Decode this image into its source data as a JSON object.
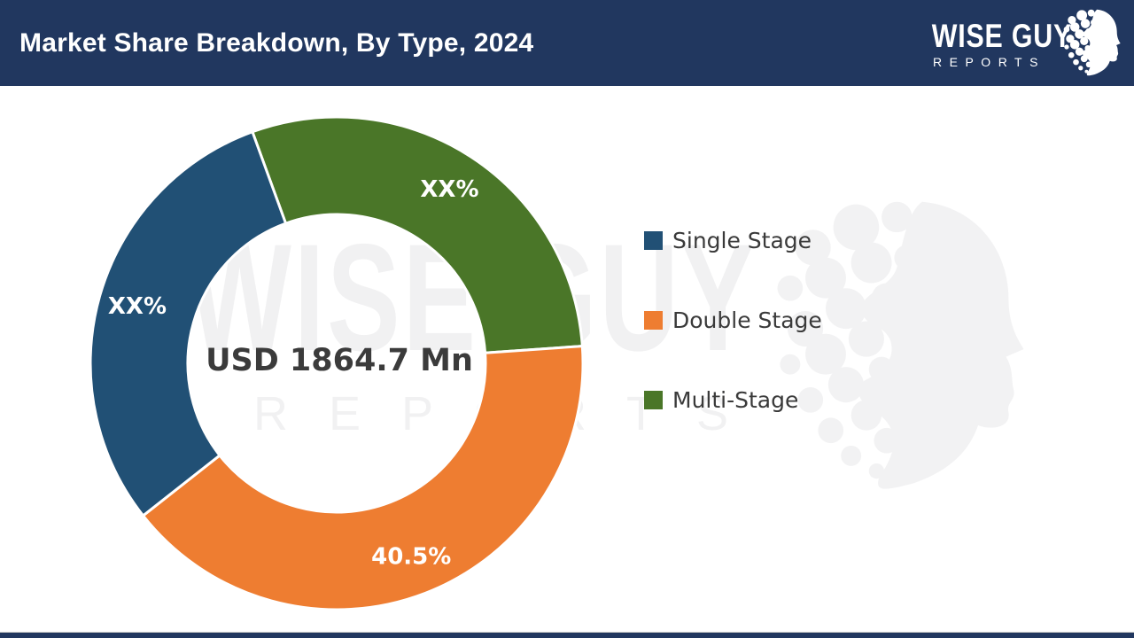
{
  "header": {
    "title": "Market Share Breakdown, By Type, 2024"
  },
  "logo": {
    "title_top": "WISE GUY",
    "title_bottom": "REPORTS"
  },
  "watermark": {
    "line1": "WISE GUY",
    "line2": "REPORTS"
  },
  "center_label": "USD 1864.7 Mn",
  "legend": [
    {
      "label": "Single Stage",
      "color": "#215075"
    },
    {
      "label": "Double Stage",
      "color": "#ee7d31"
    },
    {
      "label": "Multi-Stage",
      "color": "#4a7628"
    }
  ],
  "chart_data": {
    "type": "pie",
    "subtype": "donut",
    "title": "Market Share Breakdown, By Type, 2024",
    "center_text": "USD 1864.7 Mn",
    "legend_position": "right",
    "segments": [
      {
        "name": "Multi-Stage",
        "label": "XX%",
        "value_pct": null,
        "est_pct": 29.4,
        "start_deg": -20,
        "end_deg": 86,
        "color": "#4a7628"
      },
      {
        "name": "Double Stage",
        "label": "40.5%",
        "value_pct": 40.5,
        "start_deg": 86,
        "end_deg": 231.8,
        "color": "#ee7d31"
      },
      {
        "name": "Single Stage",
        "label": "XX%",
        "value_pct": null,
        "est_pct": 30.1,
        "start_deg": 231.8,
        "end_deg": 340,
        "color": "#215075"
      }
    ]
  },
  "colors": {
    "header_bg": "#21375f",
    "footer_bar": "#21375f",
    "segment_blue": "#215075",
    "segment_orange": "#ee7d31",
    "segment_green": "#4a7628",
    "center_text": "#3b3b3b",
    "watermark": "#f1f1f2"
  }
}
